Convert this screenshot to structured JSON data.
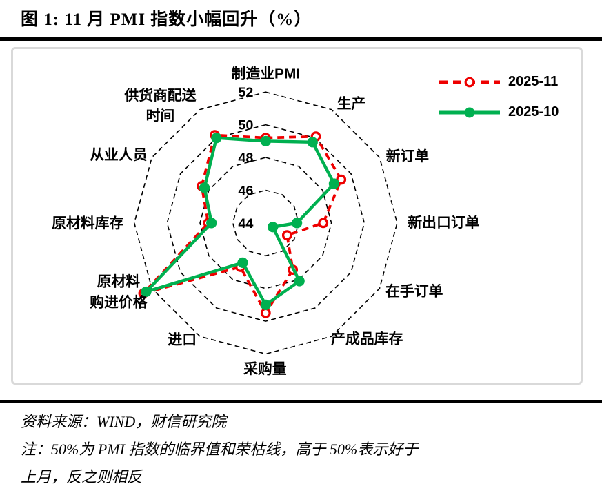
{
  "title": "图 1:  11 月 PMI 指数小幅回升（%）",
  "footer": {
    "source": "资料来源：WIND，财信研究院",
    "note_line1": "注：50%为 PMI 指数的临界值和荣枯线，高于 50%表示好于",
    "note_line2": "上月，反之则相反"
  },
  "colors": {
    "series_2025_11": "#ee0000",
    "series_2025_10": "#00b050",
    "grid": "#000000",
    "panel_border": "#d9d9d9"
  },
  "chart_data": {
    "type": "radar",
    "title": "11 月 PMI 指数小幅回升（%）",
    "legend_position": "top-right",
    "grid": "dashed concentric polygons",
    "axis": {
      "min": 44,
      "max": 52,
      "step": 2,
      "tick_labels": [
        44,
        46,
        48,
        50,
        52
      ]
    },
    "categories": [
      {
        "label": "制造业PMI"
      },
      {
        "label": "生产"
      },
      {
        "label": "新订单"
      },
      {
        "label": "新出口订单"
      },
      {
        "label": "在手订单"
      },
      {
        "label": "产成品库存"
      },
      {
        "label": "采购量"
      },
      {
        "label": "进口"
      },
      {
        "label": "原材料购进价格",
        "lines": [
          "原材料",
          "购进价格"
        ]
      },
      {
        "label": "原材料库存"
      },
      {
        "label": "从业人员"
      },
      {
        "label": "供货商配送时间",
        "lines": [
          "供货商配送",
          "时间"
        ]
      }
    ],
    "series": [
      {
        "name": "2025-11",
        "color": "#ee0000",
        "dash": true,
        "marker": "open-circle",
        "values": [
          49.2,
          50.1,
          49.3,
          47.5,
          45.5,
          47.3,
          49.5,
          47.1,
          52.6,
          47.5,
          48.5,
          50.2
        ]
      },
      {
        "name": "2025-10",
        "color": "#00b050",
        "dash": false,
        "marker": "filled-circle",
        "values": [
          49.0,
          49.7,
          48.8,
          45.9,
          44.5,
          48.1,
          49.0,
          46.8,
          52.4,
          47.3,
          48.3,
          50.0
        ]
      }
    ]
  }
}
